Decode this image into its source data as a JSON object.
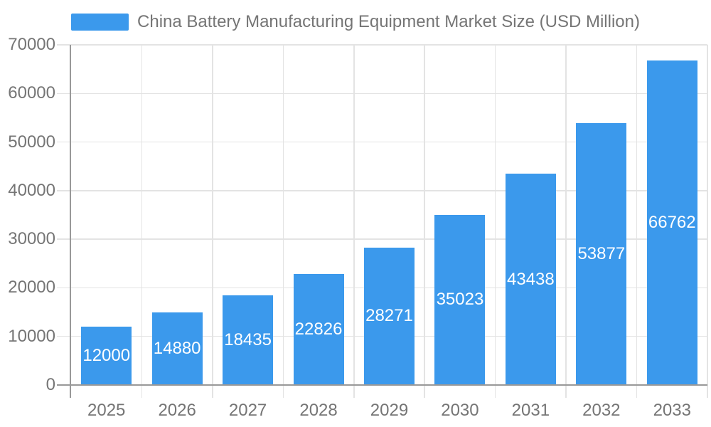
{
  "legend": {
    "label": "China Battery Manufacturing Equipment Market Size (USD Million)"
  },
  "chart_data": {
    "type": "bar",
    "title": "China Battery Manufacturing Equipment Market Size (USD Million)",
    "categories": [
      "2025",
      "2026",
      "2027",
      "2028",
      "2029",
      "2030",
      "2031",
      "2032",
      "2033"
    ],
    "values": [
      12000,
      14880,
      18435,
      22826,
      28271,
      35023,
      43438,
      53877,
      66762
    ],
    "xlabel": "",
    "ylabel": "",
    "ylim": [
      0,
      70000
    ],
    "yticks": [
      0,
      10000,
      20000,
      30000,
      40000,
      50000,
      60000,
      70000
    ],
    "grid": true,
    "legend_position": "top-center",
    "value_label_position": "inside-middle",
    "colors": {
      "bar": "#3B99EC",
      "grid": "#E3E3E3",
      "axis": "#999999",
      "tick_text": "#757575",
      "value_label_text": "#FFFFFF",
      "background": "#FFFFFF"
    }
  }
}
